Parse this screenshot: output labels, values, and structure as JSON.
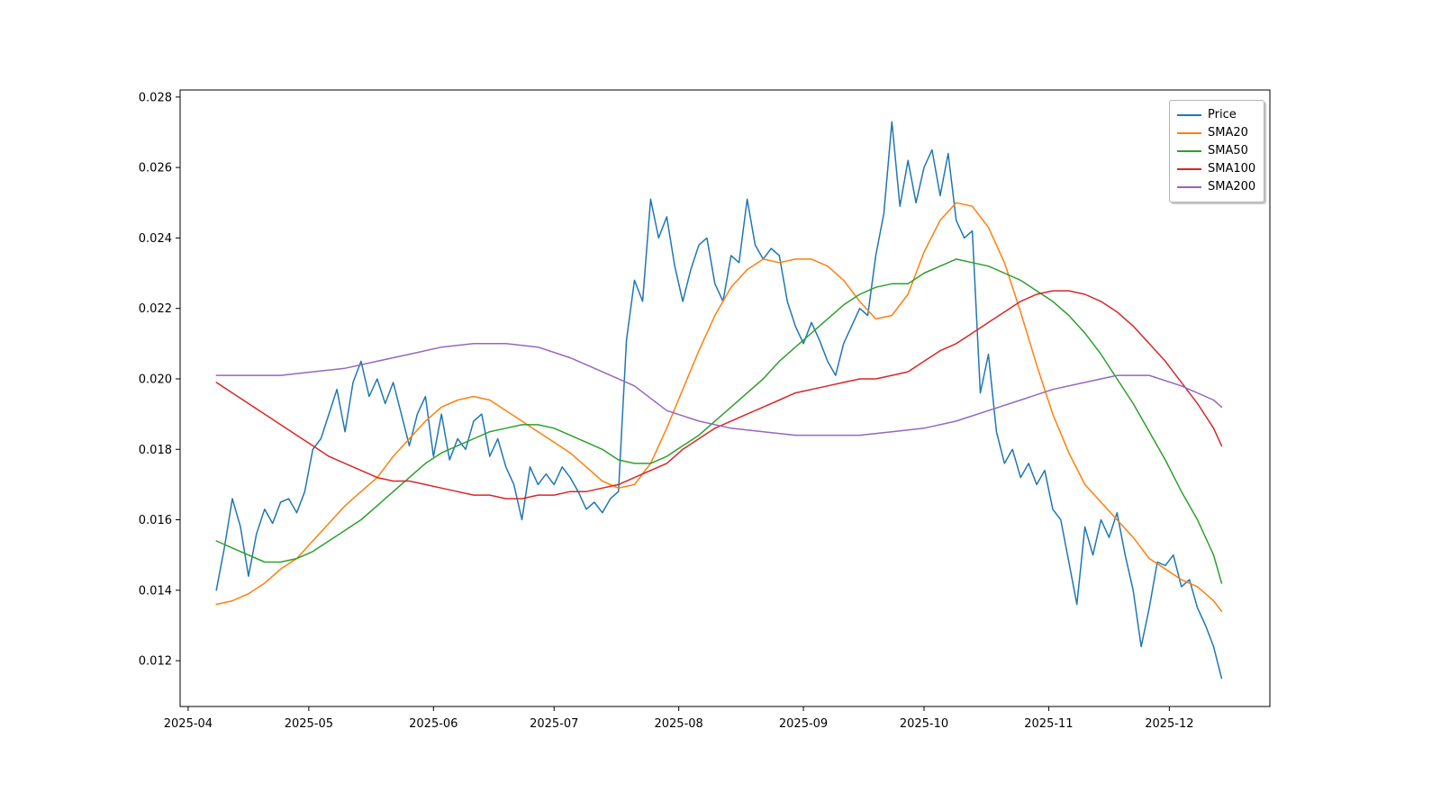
{
  "figure": {
    "background": "#ffffff",
    "frame_color": "#000000",
    "text_color": "#000000"
  },
  "legend": {
    "position": "upper-right",
    "entries": [
      "Price",
      "SMA20",
      "SMA50",
      "SMA100",
      "SMA200"
    ]
  },
  "chart_data": {
    "type": "line",
    "title": "",
    "xlabel": "",
    "ylabel": "",
    "grid": false,
    "x_unit": "days since 2025-04-01",
    "xlim": [
      -2,
      269
    ],
    "ylim": [
      0.0107,
      0.0282
    ],
    "x_ticks": [
      {
        "day": 0,
        "label": "2025-04"
      },
      {
        "day": 30,
        "label": "2025-05"
      },
      {
        "day": 61,
        "label": "2025-06"
      },
      {
        "day": 91,
        "label": "2025-07"
      },
      {
        "day": 122,
        "label": "2025-08"
      },
      {
        "day": 153,
        "label": "2025-09"
      },
      {
        "day": 183,
        "label": "2025-10"
      },
      {
        "day": 214,
        "label": "2025-11"
      },
      {
        "day": 244,
        "label": "2025-12"
      }
    ],
    "y_ticks": [
      {
        "value": 0.012,
        "label": "0.012"
      },
      {
        "value": 0.014,
        "label": "0.014"
      },
      {
        "value": 0.016,
        "label": "0.016"
      },
      {
        "value": 0.018,
        "label": "0.018"
      },
      {
        "value": 0.02,
        "label": "0.020"
      },
      {
        "value": 0.022,
        "label": "0.022"
      },
      {
        "value": 0.024,
        "label": "0.024"
      },
      {
        "value": 0.026,
        "label": "0.026"
      },
      {
        "value": 0.028,
        "label": "0.028"
      }
    ],
    "series": [
      {
        "name": "Price",
        "color": "#1f77b4",
        "linewidth": 1.5,
        "x_start": 7,
        "x_step": 2,
        "y": [
          0.014,
          0.0152,
          0.0166,
          0.0158,
          0.0144,
          0.0156,
          0.0163,
          0.0159,
          0.0165,
          0.0166,
          0.0162,
          0.0168,
          0.018,
          0.0183,
          0.019,
          0.0197,
          0.0185,
          0.0199,
          0.0205,
          0.0195,
          0.02,
          0.0193,
          0.0199,
          0.019,
          0.0181,
          0.019,
          0.0195,
          0.0178,
          0.019,
          0.0177,
          0.0183,
          0.018,
          0.0188,
          0.019,
          0.0178,
          0.0183,
          0.0175,
          0.017,
          0.016,
          0.0175,
          0.017,
          0.0173,
          0.017,
          0.0175,
          0.0172,
          0.0168,
          0.0163,
          0.0165,
          0.0162,
          0.0166,
          0.0168,
          0.0211,
          0.0228,
          0.0222,
          0.0251,
          0.024,
          0.0246,
          0.0232,
          0.0222,
          0.0231,
          0.0238,
          0.024,
          0.0227,
          0.0222,
          0.0235,
          0.0233,
          0.0251,
          0.0238,
          0.0234,
          0.0237,
          0.0235,
          0.0222,
          0.0215,
          0.021,
          0.0216,
          0.0211,
          0.0205,
          0.0201,
          0.021,
          0.0215,
          0.022,
          0.0218,
          0.0235,
          0.0247,
          0.0273,
          0.0249,
          0.0262,
          0.025,
          0.026,
          0.0265,
          0.0252,
          0.0264,
          0.0245,
          0.024,
          0.0242,
          0.0196,
          0.0207,
          0.0185,
          0.0176,
          0.018,
          0.0172,
          0.0176,
          0.017,
          0.0174,
          0.0163,
          0.016,
          0.0148,
          0.0136,
          0.0158,
          0.015,
          0.016,
          0.0155,
          0.0162,
          0.015,
          0.014,
          0.0124,
          0.0135,
          0.0148,
          0.0147,
          0.015,
          0.0141,
          0.0143,
          0.0135,
          0.013,
          0.0124,
          0.0115
        ]
      },
      {
        "name": "SMA20",
        "color": "#ff7f0e",
        "linewidth": 1.5,
        "x": [
          7,
          11,
          15,
          19,
          23,
          27,
          31,
          35,
          39,
          43,
          47,
          51,
          55,
          59,
          63,
          67,
          71,
          75,
          79,
          83,
          87,
          91,
          95,
          99,
          103,
          107,
          111,
          115,
          119,
          123,
          127,
          131,
          135,
          139,
          143,
          147,
          151,
          155,
          159,
          163,
          167,
          171,
          175,
          179,
          183,
          187,
          191,
          195,
          199,
          203,
          207,
          211,
          215,
          219,
          223,
          227,
          231,
          235,
          239,
          243,
          247,
          251,
          255,
          257
        ],
        "y": [
          0.0136,
          0.0137,
          0.0139,
          0.0142,
          0.0146,
          0.0149,
          0.0154,
          0.0159,
          0.0164,
          0.0168,
          0.0172,
          0.0178,
          0.0183,
          0.0188,
          0.0192,
          0.0194,
          0.0195,
          0.0194,
          0.0191,
          0.0188,
          0.0185,
          0.0182,
          0.0179,
          0.0175,
          0.0171,
          0.0169,
          0.017,
          0.0176,
          0.0186,
          0.0197,
          0.0208,
          0.0218,
          0.0226,
          0.0231,
          0.0234,
          0.0233,
          0.0234,
          0.0234,
          0.0232,
          0.0228,
          0.0222,
          0.0217,
          0.0218,
          0.0224,
          0.0236,
          0.0245,
          0.025,
          0.0249,
          0.0243,
          0.0233,
          0.0219,
          0.0204,
          0.019,
          0.0179,
          0.017,
          0.0165,
          0.016,
          0.0155,
          0.0149,
          0.0146,
          0.0143,
          0.0141,
          0.0137,
          0.0134
        ]
      },
      {
        "name": "SMA50",
        "color": "#2ca02c",
        "linewidth": 1.5,
        "x": [
          7,
          11,
          15,
          19,
          23,
          27,
          31,
          35,
          39,
          43,
          47,
          51,
          55,
          59,
          63,
          67,
          71,
          75,
          79,
          83,
          87,
          91,
          95,
          99,
          103,
          107,
          111,
          115,
          119,
          123,
          127,
          131,
          135,
          139,
          143,
          147,
          151,
          155,
          159,
          163,
          167,
          171,
          175,
          179,
          183,
          187,
          191,
          195,
          199,
          203,
          207,
          211,
          215,
          219,
          223,
          227,
          231,
          235,
          239,
          243,
          247,
          251,
          255,
          257
        ],
        "y": [
          0.0154,
          0.0152,
          0.015,
          0.0148,
          0.0148,
          0.0149,
          0.0151,
          0.0154,
          0.0157,
          0.016,
          0.0164,
          0.0168,
          0.0172,
          0.0176,
          0.0179,
          0.0181,
          0.0183,
          0.0185,
          0.0186,
          0.0187,
          0.0187,
          0.0186,
          0.0184,
          0.0182,
          0.018,
          0.0177,
          0.0176,
          0.0176,
          0.0178,
          0.0181,
          0.0184,
          0.0188,
          0.0192,
          0.0196,
          0.02,
          0.0205,
          0.0209,
          0.0213,
          0.0217,
          0.0221,
          0.0224,
          0.0226,
          0.0227,
          0.0227,
          0.023,
          0.0232,
          0.0234,
          0.0233,
          0.0232,
          0.023,
          0.0228,
          0.0225,
          0.0222,
          0.0218,
          0.0213,
          0.0207,
          0.02,
          0.0193,
          0.0185,
          0.0177,
          0.0168,
          0.016,
          0.015,
          0.0142
        ]
      },
      {
        "name": "SMA100",
        "color": "#d62728",
        "linewidth": 1.5,
        "x": [
          7,
          11,
          15,
          19,
          23,
          27,
          31,
          35,
          39,
          43,
          47,
          51,
          55,
          59,
          63,
          67,
          71,
          75,
          79,
          83,
          87,
          91,
          95,
          99,
          103,
          107,
          111,
          115,
          119,
          123,
          127,
          131,
          135,
          139,
          143,
          147,
          151,
          155,
          159,
          163,
          167,
          171,
          175,
          179,
          183,
          187,
          191,
          195,
          199,
          203,
          207,
          211,
          215,
          219,
          223,
          227,
          231,
          235,
          239,
          243,
          247,
          251,
          255,
          257
        ],
        "y": [
          0.0199,
          0.0196,
          0.0193,
          0.019,
          0.0187,
          0.0184,
          0.0181,
          0.0178,
          0.0176,
          0.0174,
          0.0172,
          0.0171,
          0.0171,
          0.017,
          0.0169,
          0.0168,
          0.0167,
          0.0167,
          0.0166,
          0.0166,
          0.0167,
          0.0167,
          0.0168,
          0.0168,
          0.0169,
          0.017,
          0.0172,
          0.0174,
          0.0176,
          0.018,
          0.0183,
          0.0186,
          0.0188,
          0.019,
          0.0192,
          0.0194,
          0.0196,
          0.0197,
          0.0198,
          0.0199,
          0.02,
          0.02,
          0.0201,
          0.0202,
          0.0205,
          0.0208,
          0.021,
          0.0213,
          0.0216,
          0.0219,
          0.0222,
          0.0224,
          0.0225,
          0.0225,
          0.0224,
          0.0222,
          0.0219,
          0.0215,
          0.021,
          0.0205,
          0.0199,
          0.0193,
          0.0186,
          0.0181
        ]
      },
      {
        "name": "SMA200",
        "color": "#9467bd",
        "linewidth": 1.5,
        "x": [
          7,
          15,
          23,
          31,
          39,
          47,
          55,
          63,
          71,
          79,
          87,
          95,
          103,
          111,
          119,
          127,
          135,
          143,
          151,
          159,
          167,
          175,
          183,
          191,
          199,
          207,
          215,
          223,
          231,
          239,
          247,
          255,
          257
        ],
        "y": [
          0.0201,
          0.0201,
          0.0201,
          0.0202,
          0.0203,
          0.0205,
          0.0207,
          0.0209,
          0.021,
          0.021,
          0.0209,
          0.0206,
          0.0202,
          0.0198,
          0.0191,
          0.0188,
          0.0186,
          0.0185,
          0.0184,
          0.0184,
          0.0184,
          0.0185,
          0.0186,
          0.0188,
          0.0191,
          0.0194,
          0.0197,
          0.0199,
          0.0201,
          0.0201,
          0.0198,
          0.0194,
          0.0192
        ]
      }
    ]
  }
}
